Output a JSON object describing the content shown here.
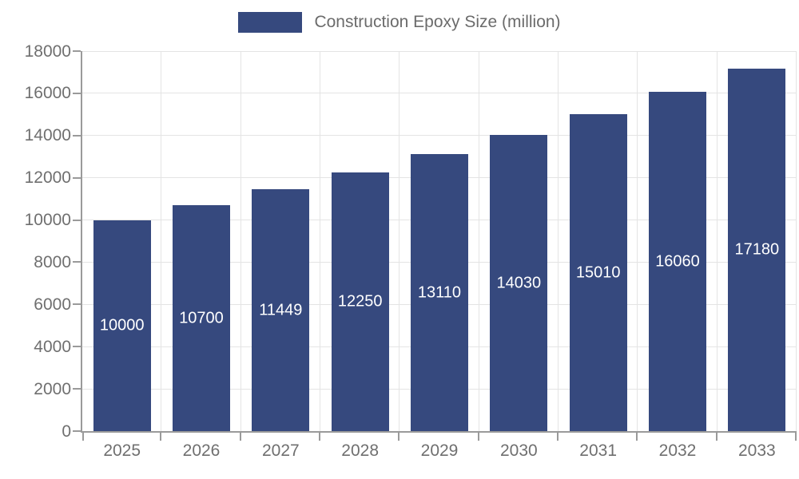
{
  "chart_data": {
    "type": "bar",
    "title": "",
    "legend_label": "Construction Epoxy Size (million)",
    "legend_position": "top",
    "categories": [
      "2025",
      "2026",
      "2027",
      "2028",
      "2029",
      "2030",
      "2031",
      "2032",
      "2033"
    ],
    "series": [
      {
        "name": "Construction Epoxy Size (million)",
        "values": [
          10000,
          10700,
          11449,
          12250,
          13110,
          14030,
          15010,
          16060,
          17180
        ]
      }
    ],
    "value_labels_shown": true,
    "xlabel": "",
    "ylabel": "",
    "ylim": [
      0,
      18000
    ],
    "y_tick_step": 2000,
    "y_ticks": [
      0,
      2000,
      4000,
      6000,
      8000,
      10000,
      12000,
      14000,
      16000,
      18000
    ],
    "grid": true,
    "colors": {
      "bar": "#36497E",
      "value_label_text": "#FFFFFF",
      "axis_text": "#6F6F6F",
      "legend_text": "#6B6B6B",
      "gridline": "#E4E4E4",
      "axis_line": "#9A9A9A",
      "background": "#FFFFFF"
    }
  }
}
